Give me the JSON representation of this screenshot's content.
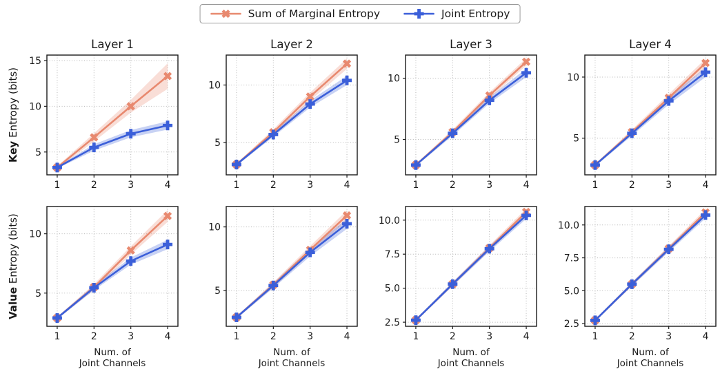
{
  "figure": {
    "xlabel_line1": "Num. of",
    "xlabel_line2": "Joint Channels",
    "row_ylabels": [
      {
        "bold": "Key",
        "rest": " Entropy (bits)"
      },
      {
        "bold": "Value",
        "rest": " Entropy (bits)"
      }
    ]
  },
  "colors": {
    "marginal": "#E8896F",
    "joint": "#3B5FD9",
    "band_opacity": 0.28,
    "grid": "#b5b5b5",
    "axis": "#1a1a1a"
  },
  "legend": {
    "items": [
      {
        "label": "Sum of Marginal Entropy",
        "marker": "X",
        "color": "#E8896F"
      },
      {
        "label": "Joint Entropy",
        "marker": "P",
        "color": "#3B5FD9"
      }
    ]
  },
  "chart_data": [
    {
      "type": "line",
      "title": "Layer 1",
      "row": "Key",
      "x": [
        1,
        2,
        3,
        4
      ],
      "xticks": [
        1,
        2,
        3,
        4
      ],
      "xlim": [
        0.72,
        4.28
      ],
      "yticks": [
        5,
        10,
        15
      ],
      "ytick_labels": [
        "5",
        "10",
        "15"
      ],
      "ylim": [
        2.5,
        15.6
      ],
      "grid": true,
      "has_xlabel": false,
      "series": [
        {
          "name": "Sum of Marginal Entropy",
          "marker": "X",
          "color": "#E8896F",
          "values": [
            3.3,
            6.6,
            10.0,
            13.3
          ],
          "lower": [
            3.15,
            6.15,
            9.3,
            11.9
          ],
          "upper": [
            3.45,
            7.05,
            10.7,
            14.7
          ]
        },
        {
          "name": "Joint Entropy",
          "marker": "P",
          "color": "#3B5FD9",
          "values": [
            3.3,
            5.5,
            7.0,
            7.9
          ],
          "lower": [
            3.2,
            5.15,
            6.6,
            7.45
          ],
          "upper": [
            3.4,
            5.85,
            7.4,
            8.35
          ]
        }
      ]
    },
    {
      "type": "line",
      "title": "Layer 2",
      "row": "Key",
      "x": [
        1,
        2,
        3,
        4
      ],
      "xticks": [
        1,
        2,
        3,
        4
      ],
      "xlim": [
        0.72,
        4.28
      ],
      "yticks": [
        5,
        10
      ],
      "ytick_labels": [
        "5",
        "10"
      ],
      "ylim": [
        2.2,
        12.6
      ],
      "grid": true,
      "has_xlabel": false,
      "series": [
        {
          "name": "Sum of Marginal Entropy",
          "marker": "X",
          "color": "#E8896F",
          "values": [
            3.1,
            5.9,
            9.0,
            11.85
          ],
          "lower": [
            3.0,
            5.65,
            8.65,
            11.4
          ],
          "upper": [
            3.2,
            6.15,
            9.35,
            12.3
          ]
        },
        {
          "name": "Joint Entropy",
          "marker": "P",
          "color": "#3B5FD9",
          "values": [
            3.1,
            5.7,
            8.35,
            10.4
          ],
          "lower": [
            3.0,
            5.5,
            8.05,
            10.0
          ],
          "upper": [
            3.2,
            5.9,
            8.65,
            10.8
          ]
        }
      ]
    },
    {
      "type": "line",
      "title": "Layer 3",
      "row": "Key",
      "x": [
        1,
        2,
        3,
        4
      ],
      "xticks": [
        1,
        2,
        3,
        4
      ],
      "xlim": [
        0.72,
        4.28
      ],
      "yticks": [
        5,
        10
      ],
      "ytick_labels": [
        "5",
        "10"
      ],
      "ylim": [
        2.1,
        11.9
      ],
      "grid": true,
      "has_xlabel": false,
      "series": [
        {
          "name": "Sum of Marginal Entropy",
          "marker": "X",
          "color": "#E8896F",
          "values": [
            2.9,
            5.6,
            8.6,
            11.35
          ],
          "lower": [
            2.8,
            5.4,
            8.35,
            11.05
          ],
          "upper": [
            3.0,
            5.8,
            8.85,
            11.65
          ]
        },
        {
          "name": "Joint Entropy",
          "marker": "P",
          "color": "#3B5FD9",
          "values": [
            2.9,
            5.5,
            8.2,
            10.45
          ],
          "lower": [
            2.8,
            5.3,
            7.95,
            10.1
          ],
          "upper": [
            3.0,
            5.7,
            8.45,
            10.8
          ]
        }
      ]
    },
    {
      "type": "line",
      "title": "Layer 4",
      "row": "Key",
      "x": [
        1,
        2,
        3,
        4
      ],
      "xticks": [
        1,
        2,
        3,
        4
      ],
      "xlim": [
        0.72,
        4.28
      ],
      "yticks": [
        5,
        10
      ],
      "ytick_labels": [
        "5",
        "10"
      ],
      "ylim": [
        2.0,
        11.8
      ],
      "grid": true,
      "has_xlabel": false,
      "series": [
        {
          "name": "Sum of Marginal Entropy",
          "marker": "X",
          "color": "#E8896F",
          "values": [
            2.8,
            5.5,
            8.3,
            11.15
          ],
          "lower": [
            2.7,
            5.3,
            8.0,
            10.8
          ],
          "upper": [
            2.9,
            5.7,
            8.6,
            11.5
          ]
        },
        {
          "name": "Joint Entropy",
          "marker": "P",
          "color": "#3B5FD9",
          "values": [
            2.8,
            5.4,
            8.05,
            10.4
          ],
          "lower": [
            2.7,
            5.2,
            7.75,
            10.0
          ],
          "upper": [
            2.9,
            5.6,
            8.35,
            10.8
          ]
        }
      ]
    },
    {
      "type": "line",
      "title": "",
      "row": "Value",
      "x": [
        1,
        2,
        3,
        4
      ],
      "xticks": [
        1,
        2,
        3,
        4
      ],
      "xlim": [
        0.72,
        4.28
      ],
      "yticks": [
        5,
        10
      ],
      "ytick_labels": [
        "5",
        "10"
      ],
      "ylim": [
        2.2,
        12.3
      ],
      "grid": true,
      "has_xlabel": true,
      "series": [
        {
          "name": "Sum of Marginal Entropy",
          "marker": "X",
          "color": "#E8896F",
          "values": [
            2.9,
            5.5,
            8.6,
            11.5
          ],
          "lower": [
            2.8,
            5.25,
            8.25,
            11.0
          ],
          "upper": [
            3.0,
            5.75,
            8.95,
            12.0
          ]
        },
        {
          "name": "Joint Entropy",
          "marker": "P",
          "color": "#3B5FD9",
          "values": [
            2.9,
            5.45,
            7.7,
            9.1
          ],
          "lower": [
            2.8,
            5.25,
            7.4,
            8.7
          ],
          "upper": [
            3.0,
            5.65,
            8.0,
            9.5
          ]
        }
      ]
    },
    {
      "type": "line",
      "title": "",
      "row": "Value",
      "x": [
        1,
        2,
        3,
        4
      ],
      "xticks": [
        1,
        2,
        3,
        4
      ],
      "xlim": [
        0.72,
        4.28
      ],
      "yticks": [
        5,
        10
      ],
      "ytick_labels": [
        "5",
        "10"
      ],
      "ylim": [
        2.2,
        11.6
      ],
      "grid": true,
      "has_xlabel": true,
      "series": [
        {
          "name": "Sum of Marginal Entropy",
          "marker": "X",
          "color": "#E8896F",
          "values": [
            2.9,
            5.45,
            8.2,
            10.9
          ],
          "lower": [
            2.8,
            5.25,
            7.9,
            10.5
          ],
          "upper": [
            3.0,
            5.65,
            8.5,
            11.3
          ]
        },
        {
          "name": "Joint Entropy",
          "marker": "P",
          "color": "#3B5FD9",
          "values": [
            2.9,
            5.4,
            8.0,
            10.25
          ],
          "lower": [
            2.8,
            5.2,
            7.7,
            9.85
          ],
          "upper": [
            3.0,
            5.6,
            8.3,
            10.65
          ]
        }
      ]
    },
    {
      "type": "line",
      "title": "",
      "row": "Value",
      "x": [
        1,
        2,
        3,
        4
      ],
      "xticks": [
        1,
        2,
        3,
        4
      ],
      "xlim": [
        0.72,
        4.28
      ],
      "yticks": [
        2.5,
        5.0,
        7.5,
        10.0
      ],
      "ytick_labels": [
        "2.5",
        "5.0",
        "7.5",
        "10.0"
      ],
      "ylim": [
        2.2,
        11.0
      ],
      "grid": true,
      "has_xlabel": true,
      "series": [
        {
          "name": "Sum of Marginal Entropy",
          "marker": "X",
          "color": "#E8896F",
          "values": [
            2.65,
            5.3,
            7.95,
            10.6
          ],
          "lower": [
            2.57,
            5.15,
            7.75,
            10.35
          ],
          "upper": [
            2.73,
            5.45,
            8.15,
            10.85
          ]
        },
        {
          "name": "Joint Entropy",
          "marker": "P",
          "color": "#3B5FD9",
          "values": [
            2.65,
            5.3,
            7.9,
            10.35
          ],
          "lower": [
            2.57,
            5.15,
            7.7,
            10.1
          ],
          "upper": [
            2.73,
            5.45,
            8.1,
            10.6
          ]
        }
      ]
    },
    {
      "type": "line",
      "title": "",
      "row": "Value",
      "x": [
        1,
        2,
        3,
        4
      ],
      "xticks": [
        1,
        2,
        3,
        4
      ],
      "xlim": [
        0.72,
        4.28
      ],
      "yticks": [
        2.5,
        5.0,
        7.5,
        10.0
      ],
      "ytick_labels": [
        "2.5",
        "5.0",
        "7.5",
        "10.0"
      ],
      "ylim": [
        2.3,
        11.4
      ],
      "grid": true,
      "has_xlabel": true,
      "series": [
        {
          "name": "Sum of Marginal Entropy",
          "marker": "X",
          "color": "#E8896F",
          "values": [
            2.75,
            5.5,
            8.2,
            10.95
          ],
          "lower": [
            2.67,
            5.35,
            8.0,
            10.7
          ],
          "upper": [
            2.83,
            5.65,
            8.4,
            11.2
          ]
        },
        {
          "name": "Joint Entropy",
          "marker": "P",
          "color": "#3B5FD9",
          "values": [
            2.75,
            5.5,
            8.15,
            10.75
          ],
          "lower": [
            2.67,
            5.35,
            7.95,
            10.5
          ],
          "upper": [
            2.83,
            5.65,
            8.35,
            11.0
          ]
        }
      ]
    }
  ]
}
